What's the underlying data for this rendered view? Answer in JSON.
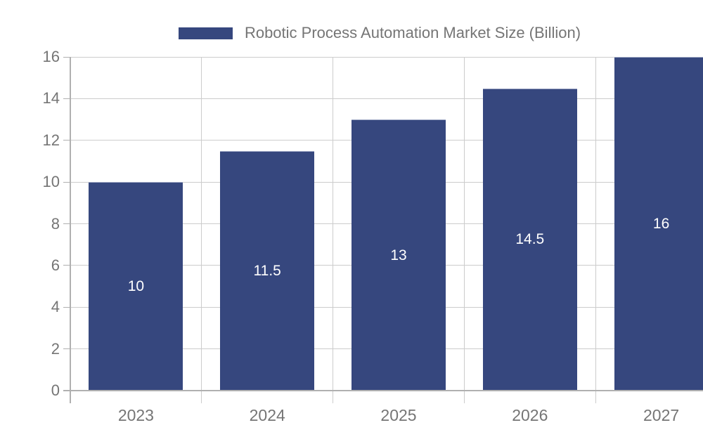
{
  "chart_data": {
    "type": "bar",
    "title": "Robotic Process Automation Market Size (Billion)",
    "categories": [
      "2023",
      "2024",
      "2025",
      "2026",
      "2027"
    ],
    "values": [
      10,
      11.5,
      13,
      14.5,
      16
    ],
    "value_labels": [
      "10",
      "11.5",
      "13",
      "14.5",
      "16"
    ],
    "xlabel": "",
    "ylabel": "",
    "ylim": [
      0,
      16
    ],
    "yticks": [
      0,
      2,
      4,
      6,
      8,
      10,
      12,
      14,
      16
    ],
    "grid": true,
    "legend_position": "top-center",
    "colors": {
      "bar": "#36477e",
      "bar_top_edge": "#a3abc7",
      "grid": "#cccccc",
      "axis": "#b0b0b0",
      "tick_text": "#757575",
      "legend_text": "#757575",
      "value_text": "#ffffff",
      "background": "#ffffff"
    }
  }
}
